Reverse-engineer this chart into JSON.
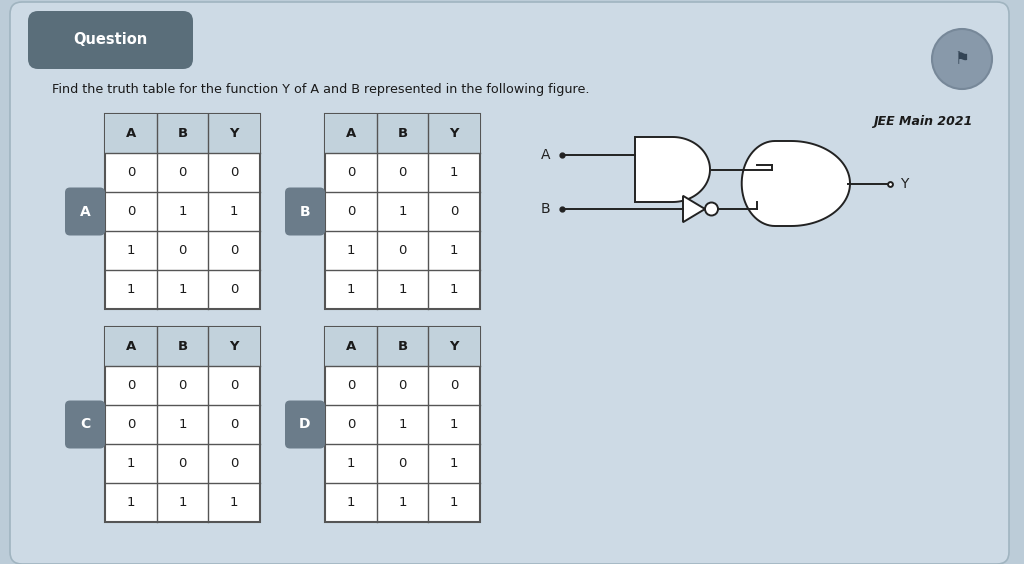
{
  "title": "Question",
  "question_text": "Find the truth table for the function Y of A and B represented in the following figure.",
  "source": "JEE Main 2021",
  "bg_color": "#bcccd8",
  "card_color": "#cddae5",
  "options": [
    {
      "label": "A",
      "headers": [
        "A",
        "B",
        "Y"
      ],
      "rows": [
        [
          0,
          0,
          0
        ],
        [
          0,
          1,
          1
        ],
        [
          1,
          0,
          0
        ],
        [
          1,
          1,
          0
        ]
      ]
    },
    {
      "label": "B",
      "headers": [
        "A",
        "B",
        "Y"
      ],
      "rows": [
        [
          0,
          0,
          1
        ],
        [
          0,
          1,
          0
        ],
        [
          1,
          0,
          1
        ],
        [
          1,
          1,
          1
        ]
      ]
    },
    {
      "label": "C",
      "headers": [
        "A",
        "B",
        "Y"
      ],
      "rows": [
        [
          0,
          0,
          0
        ],
        [
          0,
          1,
          0
        ],
        [
          1,
          0,
          0
        ],
        [
          1,
          1,
          1
        ]
      ]
    },
    {
      "label": "D",
      "headers": [
        "A",
        "B",
        "Y"
      ],
      "rows": [
        [
          0,
          0,
          0
        ],
        [
          0,
          1,
          1
        ],
        [
          1,
          0,
          1
        ],
        [
          1,
          1,
          1
        ]
      ]
    }
  ],
  "label_btn_color": "#6b7c8a",
  "table_header_color": "#c2d2dc",
  "table_border_color": "#555555",
  "text_color": "#1a1a1a",
  "circuit_color": "#222222"
}
